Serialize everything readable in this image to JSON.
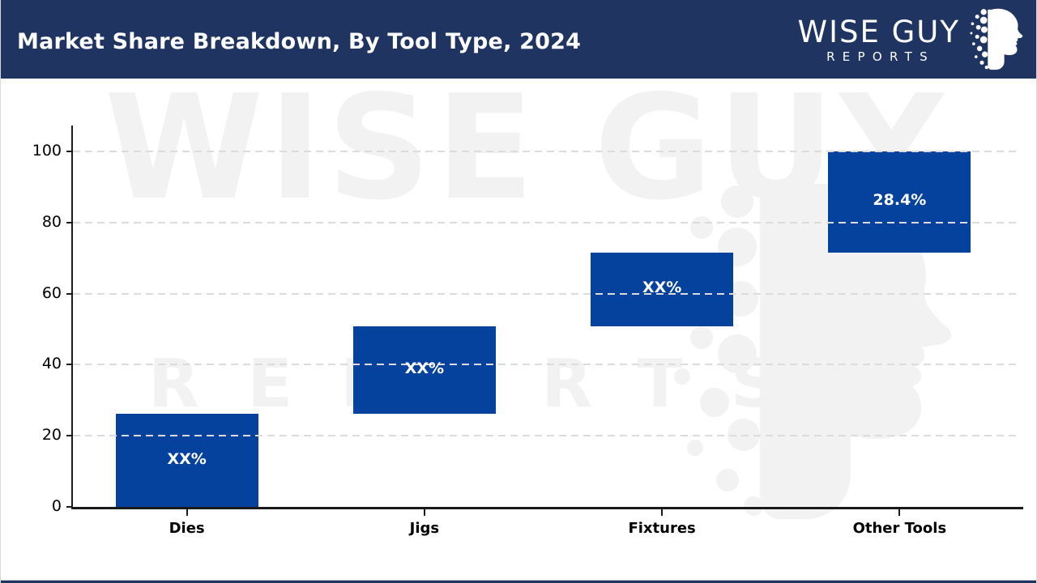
{
  "header": {
    "title": "Market Share Breakdown, By Tool Type, 2024",
    "logo": {
      "line1": "WISE GUY",
      "line2": "REPORTS"
    }
  },
  "watermark": {
    "line1": "WISE GUY",
    "line2": "REPORTS"
  },
  "chart_data": {
    "type": "waterfall",
    "title": "Market Share Breakdown, By Tool Type, 2024",
    "categories": [
      "Dies",
      "Jigs",
      "Fixtures",
      "Other Tools"
    ],
    "series": [
      {
        "name": "Market Share",
        "segments": [
          {
            "category": "Dies",
            "start": 0,
            "end": 26.1,
            "value": 26.1,
            "label": "XX%"
          },
          {
            "category": "Jigs",
            "start": 26.1,
            "end": 50.9,
            "value": 24.8,
            "label": "XX%"
          },
          {
            "category": "Fixtures",
            "start": 50.9,
            "end": 71.6,
            "value": 20.7,
            "label": "XX%"
          },
          {
            "category": "Other Tools",
            "start": 71.6,
            "end": 100,
            "value": 28.4,
            "label": "28.4%"
          }
        ]
      }
    ],
    "xlabel": "",
    "ylabel": "",
    "ylim": [
      0,
      107.3
    ],
    "yticks": [
      0,
      20,
      40,
      60,
      80,
      100
    ],
    "grid": "horizontal-dashed",
    "legend": "none"
  },
  "colors": {
    "navy": "#1F3461",
    "bar_blue": "#05429D",
    "bar_label": "#FFFFFF",
    "watermark_gray": "#F2F2F2",
    "grid_gray": "#DCDCDC",
    "axis_black": "#1A1A1A"
  }
}
